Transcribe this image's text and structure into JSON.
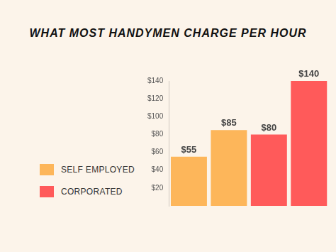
{
  "chart_data": {
    "type": "bar",
    "title": "WHAT MOST HANDYMEN CHARGE PER HOUR",
    "categories": [
      null,
      null,
      null,
      null
    ],
    "series": [
      {
        "name": "SELF EMPLOYED",
        "color": "#fdb65a",
        "values": [
          55,
          85,
          null,
          null
        ],
        "value_labels": [
          "$55",
          "$85",
          null,
          null
        ]
      },
      {
        "name": "CORPORATED",
        "color": "#ff5a5a",
        "values": [
          null,
          null,
          80,
          140
        ],
        "value_labels": [
          null,
          null,
          "$80",
          "$140"
        ]
      }
    ],
    "ylim": [
      0,
      140
    ],
    "yticks": [
      {
        "value": 20,
        "label": "$20"
      },
      {
        "value": 40,
        "label": "$40"
      },
      {
        "value": 60,
        "label": "$60"
      },
      {
        "value": 80,
        "label": "$80"
      },
      {
        "value": 100,
        "label": "$100"
      },
      {
        "value": 120,
        "label": "$120"
      },
      {
        "value": 140,
        "label": "$140"
      }
    ],
    "grid": false,
    "legend": "left",
    "data_labels": true,
    "tick_labels": "y"
  }
}
